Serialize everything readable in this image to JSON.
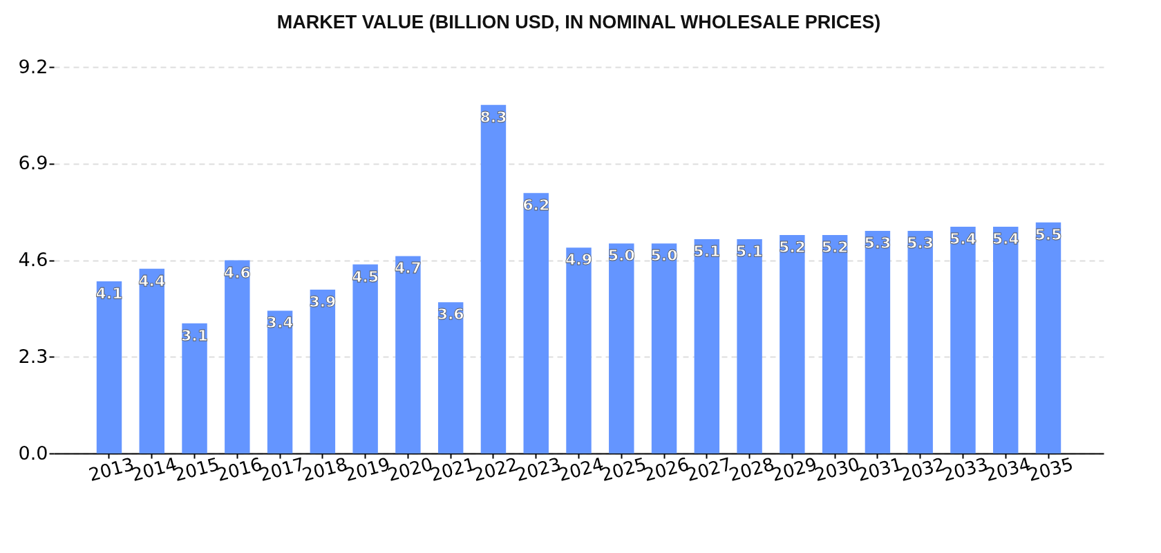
{
  "chart_data": {
    "type": "bar",
    "title": "MARKET VALUE (BILLION USD, IN NOMINAL WHOLESALE PRICES)",
    "categories": [
      "2013",
      "2014",
      "2015",
      "2016",
      "2017",
      "2018",
      "2019",
      "2020",
      "2021",
      "2022",
      "2023",
      "2024",
      "2025",
      "2026",
      "2027",
      "2028",
      "2029",
      "2030",
      "2031",
      "2032",
      "2033",
      "2034",
      "2035"
    ],
    "values": [
      4.1,
      4.4,
      3.1,
      4.6,
      3.4,
      3.9,
      4.5,
      4.7,
      3.6,
      8.3,
      6.2,
      4.9,
      5.0,
      5.0,
      5.1,
      5.1,
      5.2,
      5.2,
      5.3,
      5.3,
      5.4,
      5.4,
      5.5
    ],
    "value_labels": [
      "4.1",
      "4.4",
      "3.1",
      "4.6",
      "3.4",
      "3.9",
      "4.5",
      "4.7",
      "3.6",
      "8.3",
      "6.2",
      "4.9",
      "5.0",
      "5.0",
      "5.1",
      "5.1",
      "5.2",
      "5.2",
      "5.3",
      "5.3",
      "5.4",
      "5.4",
      "5.5"
    ],
    "color": "#6495ff",
    "ylim": [
      0,
      9.2
    ],
    "yticks": [
      {
        "value": 0,
        "label": "0.0"
      },
      2.3,
      4.6,
      6.9,
      9.2
    ],
    "grid": "y"
  }
}
